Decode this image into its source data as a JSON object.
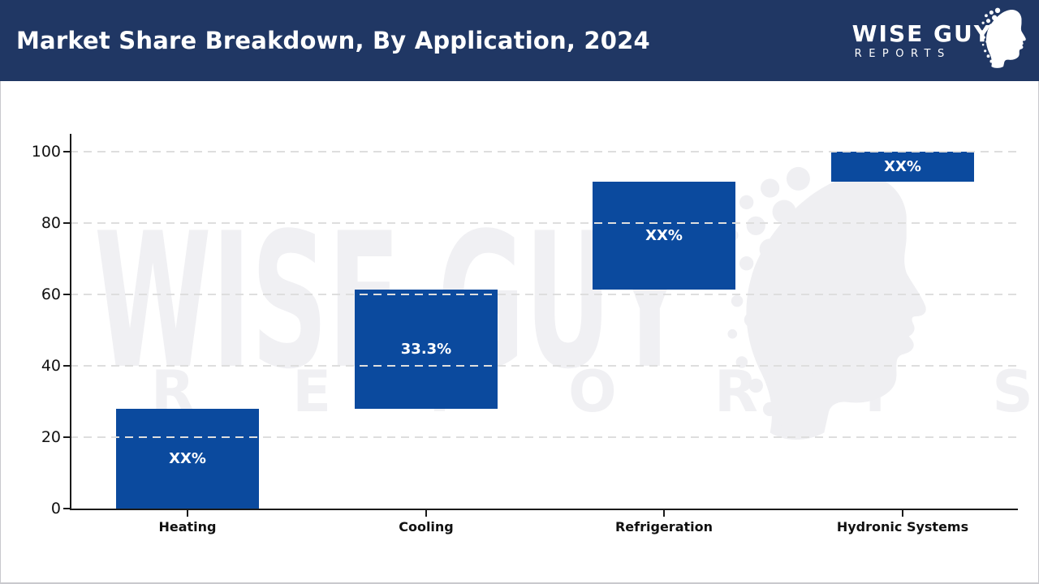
{
  "header": {
    "title": "Market Share Breakdown, By Application, 2024",
    "logo": {
      "name": "WISE GUY",
      "tagline": "REPORTS"
    }
  },
  "watermark": {
    "name": "WISE GUY",
    "tagline": "R E P O R T S"
  },
  "chart_data": {
    "type": "bar",
    "subtype": "waterfall",
    "title": "Market Share Breakdown, By Application, 2024",
    "categories": [
      "Heating",
      "Cooling",
      "Refrigeration",
      "Hydronic Systems"
    ],
    "segments": [
      {
        "category": "Heating",
        "start": 0,
        "end": 28,
        "label": "XX%"
      },
      {
        "category": "Cooling",
        "start": 28,
        "end": 61.3,
        "label": "33.3%"
      },
      {
        "category": "Refrigeration",
        "start": 61.3,
        "end": 91.7,
        "label": "XX%"
      },
      {
        "category": "Hydronic Systems",
        "start": 91.7,
        "end": 100,
        "label": "XX%"
      }
    ],
    "ylim": [
      0,
      100
    ],
    "yticks": [
      0,
      20,
      40,
      60,
      80,
      100
    ],
    "xlabel": "",
    "ylabel": "",
    "grid": "horizontal-dashed",
    "legend": "none",
    "bar_color": "#0b4a9e",
    "bar_label_color": "#ffffff",
    "axis_color": "#1a1a1a",
    "grid_color": "#dedede"
  },
  "colors": {
    "header_bg": "#203764",
    "header_text": "#ffffff",
    "watermark": "#f0f0f3"
  }
}
